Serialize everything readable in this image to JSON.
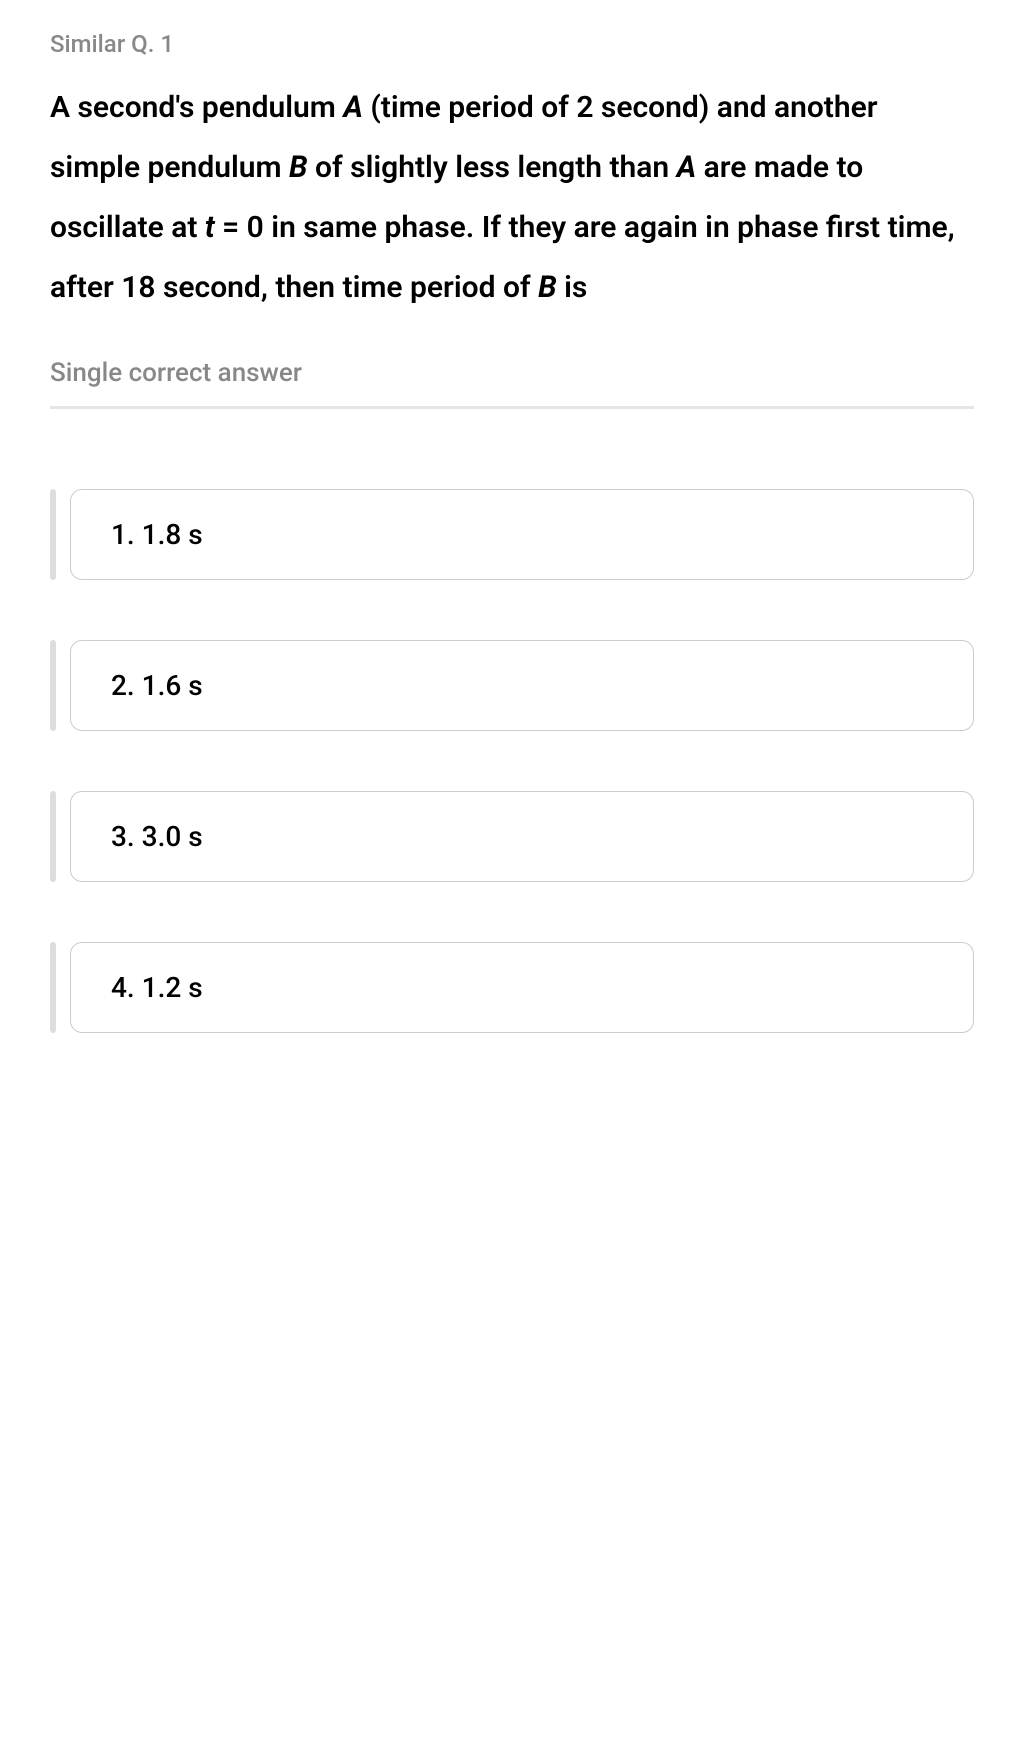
{
  "question_label": "Similar Q. 1",
  "question_parts": {
    "p1": "A second's pendulum ",
    "pA": "A",
    "p2": " (time period of 2 second) and another simple pendulum ",
    "pB": "B",
    "p3": " of slightly less length than ",
    "pA2": "A",
    "p4": " are made to oscillate at ",
    "pt": "t",
    "p5": " = 0 in same phase. If they are again in phase first time, after 18 second, then time period of ",
    "pB2": "B",
    "p6": " is"
  },
  "answer_type": "Single correct answer",
  "options": [
    {
      "label": "1. 1.8 s"
    },
    {
      "label": "2. 1.6 s"
    },
    {
      "label": "3. 3.0 s"
    },
    {
      "label": "4. 1.2 s"
    }
  ],
  "styling": {
    "background_color": "#ffffff",
    "text_color": "#000000",
    "muted_color": "#888888",
    "border_color": "#cccccc",
    "divider_color": "#e5e5e5",
    "option_bar_color": "#dddddd",
    "question_fontsize": 30,
    "label_fontsize": 24,
    "answer_type_fontsize": 26,
    "option_fontsize": 28,
    "option_border_radius": 12,
    "option_gap": 60,
    "line_height": 2.0
  }
}
